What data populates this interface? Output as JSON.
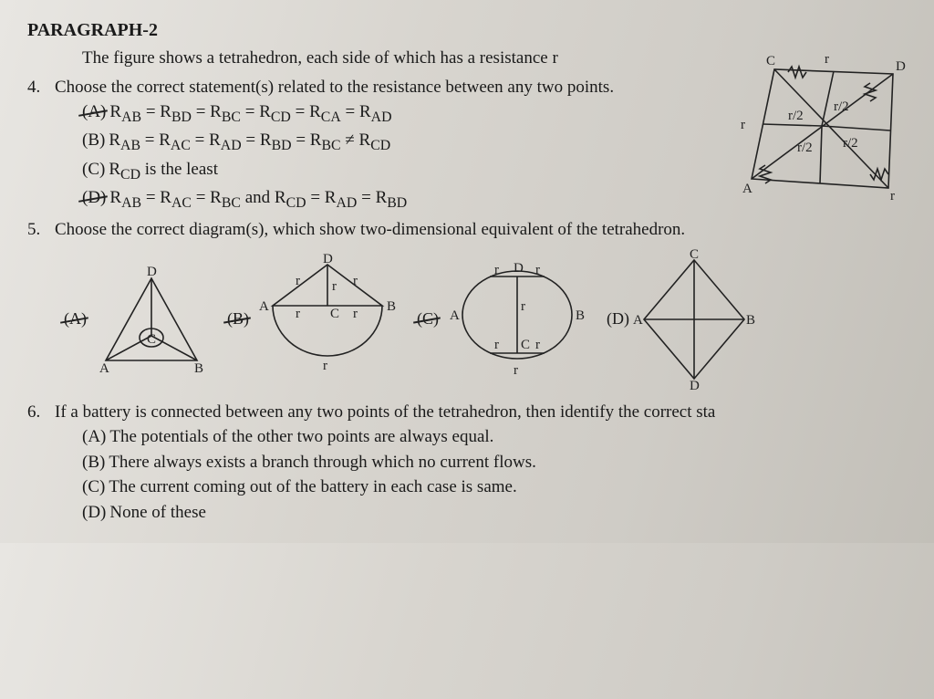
{
  "heading": "PARAGRAPH-2",
  "intro": "The figure shows a tetrahedron, each side of which has a resistance r",
  "q4": {
    "num": "4.",
    "stem": "Choose the correct statement(s) related to the resistance between any two points.",
    "opts": {
      "A": {
        "label": "(A)",
        "html": "R<sub>AB</sub> = R<sub>BD</sub> = R<sub>BC</sub> = R<sub>CD</sub> = R<sub>CA</sub> = R<sub>AD</sub>"
      },
      "B": {
        "label": "(B)",
        "html": "R<sub>AB</sub> = R<sub>AC</sub> = R<sub>AD</sub> = R<sub>BD</sub> = R<sub>BC</sub> ≠ R<sub>CD</sub>"
      },
      "C": {
        "label": "(C)",
        "html": "R<sub>CD</sub> is the least"
      },
      "D": {
        "label": "(D)",
        "html": "R<sub>AB</sub> = R<sub>AC</sub> = R<sub>BC</sub> and R<sub>CD</sub> = R<sub>AD</sub> = R<sub>BD</sub>"
      }
    }
  },
  "q5": {
    "num": "5.",
    "stem": "Choose the correct diagram(s), which show two-dimensional equivalent of the tetrahedron.",
    "labels": {
      "A": "(A)",
      "B": "(B)",
      "C": "(C)",
      "D": "(D)"
    }
  },
  "q6": {
    "num": "6.",
    "stem": "If a battery is connected between any two points of the tetrahedron, then identify the correct sta",
    "opts": {
      "A": {
        "label": "(A)",
        "text": "The potentials of the other two points are always equal."
      },
      "B": {
        "label": "(B)",
        "text": "There always exists a branch through which no current flows."
      },
      "C": {
        "label": "(C)",
        "text": "The current coming out of the battery in each case is same."
      },
      "D": {
        "label": "(D)",
        "text": "None of these"
      }
    }
  },
  "fig": {
    "vertices": {
      "A": "A",
      "B": "B",
      "C": "C",
      "D": "D"
    },
    "edge_r": "r",
    "half_r": "r/2",
    "stroke": "#222222",
    "text_color": "#222222",
    "font_size": 15,
    "line_width": 1.6
  },
  "diagA": {
    "labels": {
      "A": "A",
      "B": "B",
      "C": "C",
      "D": "D"
    },
    "stroke": "#222222",
    "lw": 1.6,
    "fs": 15
  },
  "diagB": {
    "labels": {
      "A": "A",
      "B": "B",
      "C": "C",
      "D": "D",
      "r": "r"
    },
    "stroke": "#222222",
    "lw": 1.6,
    "fs": 15
  },
  "diagC": {
    "labels": {
      "A": "A",
      "B": "B",
      "C": "C",
      "D": "D",
      "r": "r"
    },
    "stroke": "#222222",
    "lw": 1.6,
    "fs": 15
  },
  "diagD": {
    "labels": {
      "A": "A",
      "B": "B",
      "C": "C",
      "D": "D"
    },
    "stroke": "#222222",
    "lw": 1.6,
    "fs": 15
  }
}
